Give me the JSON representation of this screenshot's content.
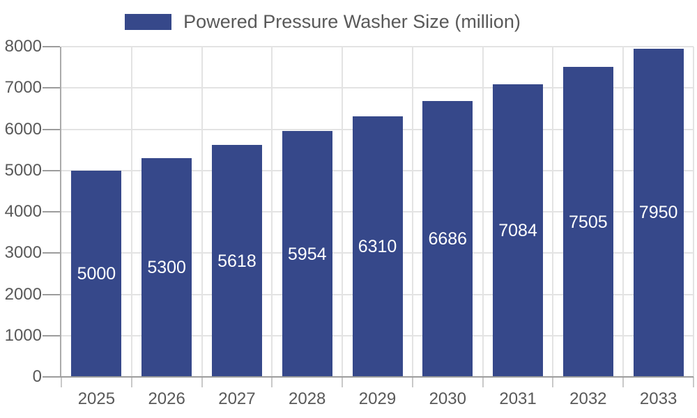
{
  "legend": {
    "label": "Powered Pressure Washer Size (million)"
  },
  "chart_data": {
    "type": "bar",
    "title": "Powered Pressure Washer Size (million)",
    "categories": [
      "2025",
      "2026",
      "2027",
      "2028",
      "2029",
      "2030",
      "2031",
      "2032",
      "2033"
    ],
    "values": [
      5000,
      5300,
      5618,
      5954,
      6310,
      6686,
      7084,
      7505,
      7950
    ],
    "series": [
      {
        "name": "Powered Pressure Washer Size (million)",
        "values": [
          5000,
          5300,
          5618,
          5954,
          6310,
          6686,
          7084,
          7505,
          7950
        ]
      }
    ],
    "xlabel": "",
    "ylabel": "",
    "ylim": [
      0,
      8000
    ],
    "yticks": [
      0,
      1000,
      2000,
      3000,
      4000,
      5000,
      6000,
      7000,
      8000
    ],
    "grid": true,
    "legend_position": "top-center",
    "bar_labels_inside": true,
    "colors": {
      "bar": "#36488a",
      "bar_label": "#ffffff",
      "axis_text": "#595959",
      "gridline": "#e3e3e3",
      "axis_line": "#9c9c9c",
      "left_spine": "#ababab",
      "background": "#ffffff"
    }
  }
}
